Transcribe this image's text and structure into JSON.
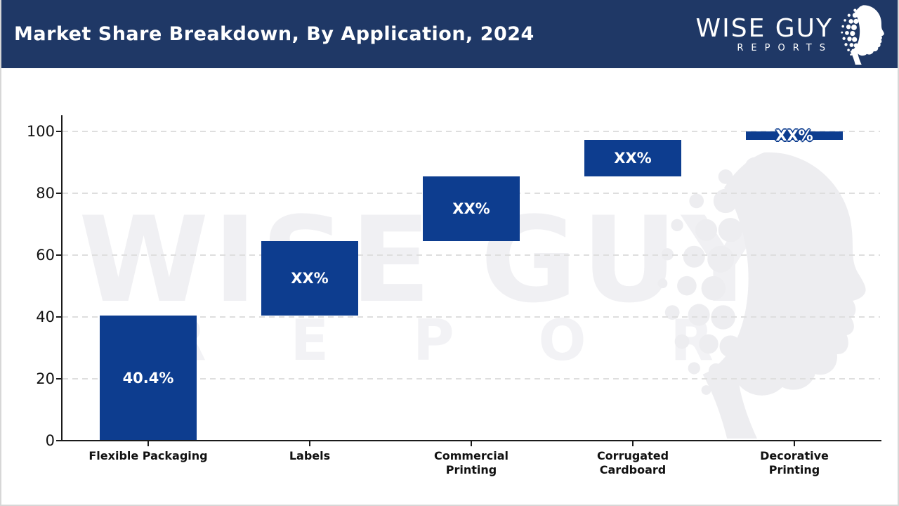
{
  "header": {
    "title": "Market Share Breakdown, By Application, 2024",
    "logo": {
      "name": "WISE GUY",
      "sub": "REPORTS"
    }
  },
  "watermark": {
    "line1": "WISE GUY",
    "line2": "R E P O R T S"
  },
  "chart_data": {
    "type": "bar",
    "subtype": "waterfall",
    "title": "Market Share Breakdown, By Application, 2024",
    "categories": [
      "Flexible Packaging",
      "Labels",
      "Commercial Printing",
      "Corrugated Cardboard",
      "Decorative Printing"
    ],
    "segments": [
      {
        "category": "Flexible Packaging",
        "category_lines": [
          "Flexible Packaging"
        ],
        "start": 0,
        "end": 40.4,
        "value_label": "40.4%"
      },
      {
        "category": "Labels",
        "category_lines": [
          "Labels"
        ],
        "start": 40.4,
        "end": 64.5,
        "value_label": "XX%"
      },
      {
        "category": "Commercial Printing",
        "category_lines": [
          "Commercial",
          "Printing"
        ],
        "start": 64.5,
        "end": 85.5,
        "value_label": "XX%"
      },
      {
        "category": "Corrugated Cardboard",
        "category_lines": [
          "Corrugated",
          "Cardboard"
        ],
        "start": 85.5,
        "end": 97.3,
        "value_label": "XX%"
      },
      {
        "category": "Decorative Printing",
        "category_lines": [
          "Decorative",
          "Printing"
        ],
        "start": 97.3,
        "end": 100,
        "value_label": "XX%"
      }
    ],
    "y_axis": {
      "ticks": [
        0,
        20,
        40,
        60,
        80,
        100
      ],
      "lim": [
        0,
        105
      ]
    },
    "x_axis": {
      "label": ""
    },
    "grid": {
      "horizontal": true,
      "style": "dashed",
      "color": "#dedede"
    },
    "legend": "none",
    "bar_color": "#0d3d8f",
    "value_label_color": "#ffffff",
    "header_color": "#1f3866"
  }
}
